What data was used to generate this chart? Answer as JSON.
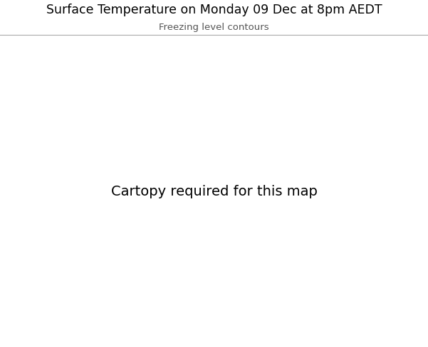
{
  "title": "Surface Temperature on Monday 09 Dec at 8pm AEDT",
  "subtitle": "Freezing level contours",
  "title_fontsize": 12.5,
  "subtitle_fontsize": 9.5,
  "ocean_color": "#c8d8ee",
  "fig_bg": "white",
  "fig_width": 6.01,
  "fig_height": 4.88,
  "dpi": 100,
  "extent": [
    108,
    200,
    -58,
    -5
  ],
  "contour_color": "#dd0000",
  "contour_lw": 1.3,
  "label_fontsize": 7.5,
  "state_border_color": "black",
  "state_border_lw": 0.6
}
